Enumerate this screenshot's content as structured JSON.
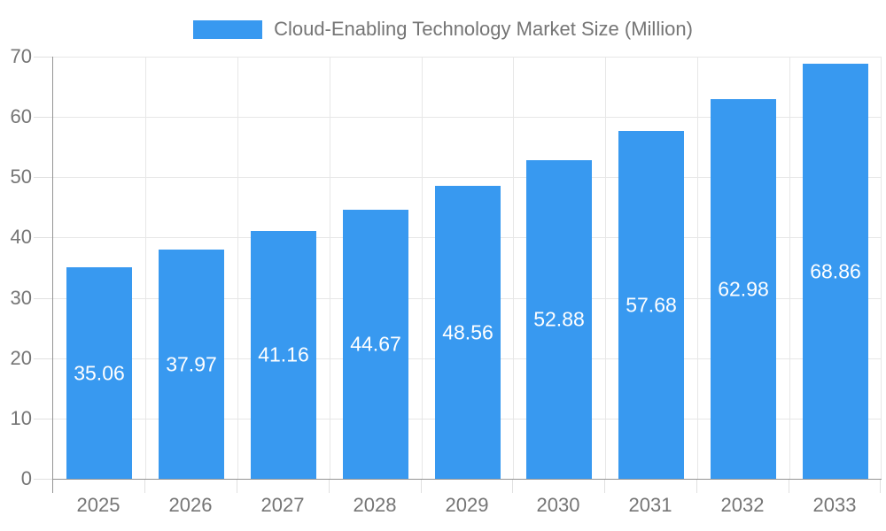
{
  "chart_data": {
    "type": "bar",
    "title": "Cloud-Enabling Technology Market Size (Million)",
    "categories": [
      "2025",
      "2026",
      "2027",
      "2028",
      "2029",
      "2030",
      "2031",
      "2032",
      "2033"
    ],
    "values": [
      35.06,
      37.97,
      41.16,
      44.67,
      48.56,
      52.88,
      57.68,
      62.98,
      68.86
    ],
    "xlabel": "",
    "ylabel": "",
    "ylim": [
      0,
      70
    ],
    "yticks": [
      0,
      10,
      20,
      30,
      40,
      50,
      60,
      70
    ],
    "grid": true,
    "legend_position": "top",
    "value_labels_inside_bars": true,
    "colors": {
      "bar": "#3899F0",
      "grid": "#e7e7e7",
      "tick": "#e0e0e0",
      "axis": "#949494",
      "text": "#757575",
      "value_text": "#ffffff",
      "background": "#ffffff"
    }
  }
}
